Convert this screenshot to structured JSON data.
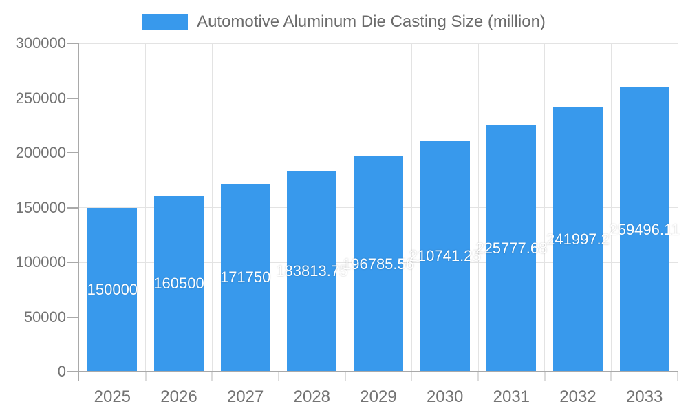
{
  "legend": {
    "label": "Automotive Aluminum Die Casting Size (million)"
  },
  "chart_data": {
    "type": "bar",
    "title": "Automotive Aluminum Die Casting Size (million)",
    "series_name": "Automotive Aluminum Die Casting Size (million)",
    "categories": [
      "2025",
      "2026",
      "2027",
      "2028",
      "2029",
      "2030",
      "2031",
      "2032",
      "2033"
    ],
    "values": [
      150000,
      160500,
      171750,
      183813.75,
      196785.56,
      210741.25,
      225777.68,
      241997.2,
      259496.11
    ],
    "value_labels": [
      "150000",
      "160500",
      "171750",
      "183813.75",
      "196785.56",
      "210741.25",
      "225777.68",
      "241997.2",
      "259496.11"
    ],
    "xlabel": "",
    "ylabel": "",
    "ylim": [
      0,
      300000
    ],
    "ytick_interval": 50000,
    "yticks": [
      0,
      50000,
      100000,
      150000,
      200000,
      250000,
      300000
    ],
    "grid": true,
    "legend_position": "top",
    "bar_labels_position": "inside-center",
    "colors": {
      "bar": "#3899EC",
      "bar_label": "#FFFFFF",
      "grid": "#E3E3E3",
      "axis": "#A9A9A9",
      "tick_minor": "#DCDCDC",
      "tick_text": "#737373",
      "legend_text": "#6B6B6B",
      "background": "#FFFFFF"
    }
  }
}
